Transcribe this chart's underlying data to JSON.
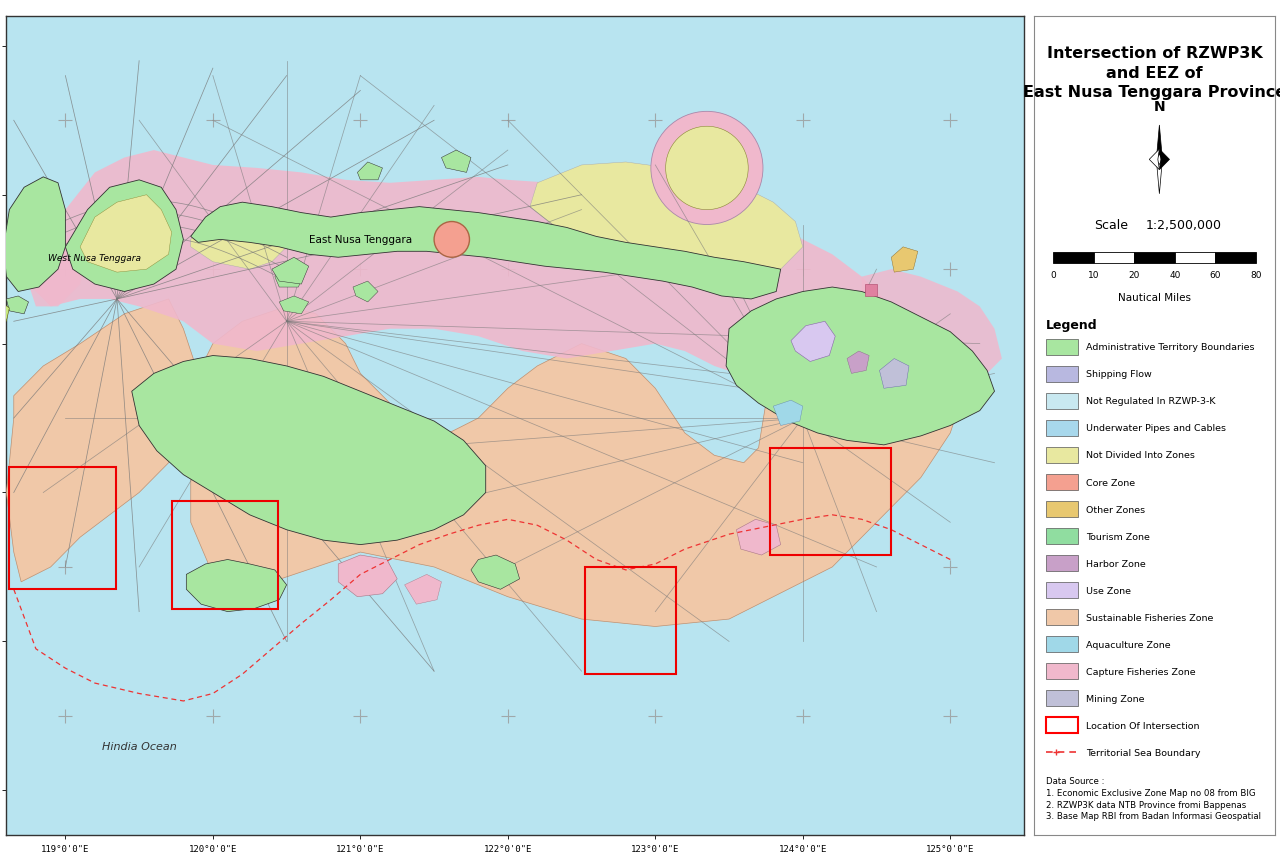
{
  "title": "Intersection of RZWP3K\nand EEZ of\nEast Nusa Tenggara Province",
  "scale_text": "Scale   1:2,500,000",
  "nautical_miles_label": "Nautical Miles",
  "scale_ticks": [
    0,
    10,
    20,
    40,
    60,
    80
  ],
  "ocean_label": "Hindia Ocean",
  "west_label": "West Nusa Tenggara",
  "east_label": "East Nusa Tenggara",
  "map_bg": "#B8E4F0",
  "panel_bg": "#FFFFFF",
  "xlim": [
    118.6,
    125.5
  ],
  "ylim": [
    -12.3,
    -6.8
  ],
  "xticks": [
    119.0,
    120.0,
    121.0,
    122.0,
    123.0,
    124.0,
    125.0
  ],
  "yticks": [
    -12.0,
    -11.0,
    -10.0,
    -9.0,
    -8.0,
    -7.0
  ],
  "cross_color": "#999999",
  "legend_colors": {
    "Administrative Territory Boundaries": "#A8E6A0",
    "Shipping Flow": "#B8B8E0",
    "Not Regulated In RZWP-3-K": "#C8E8F0",
    "Underwater Pipes and Cables": "#A8D8EC",
    "Not Divided Into Zones": "#E8E8A0",
    "Core Zone": "#F4A090",
    "Other Zones": "#E8C870",
    "Tourism Zone": "#90DDA0",
    "Harbor Zone": "#C8A0C8",
    "Use Zone": "#D8C8F0",
    "Sustainable Fisheries Zone": "#F0C8A8",
    "Aquaculture Zone": "#A0D8E8",
    "Capture Fisheries Zone": "#F0B8CC",
    "Mining Zone": "#C0C0D8"
  },
  "data_source": "Data Source :\n1. Economic Exclusive Zone Map no 08 from BIG\n2. RZWP3K data NTB Province fromi Bappenas\n3. Base Map RBI from Badan Informasi Geospatial"
}
